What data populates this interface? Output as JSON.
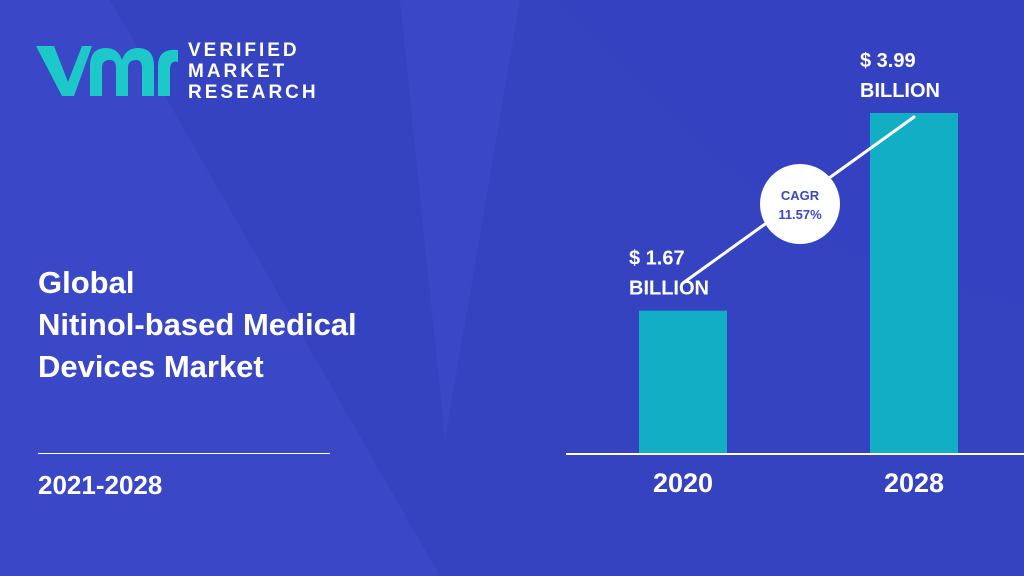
{
  "colors": {
    "background": "#3a47c6",
    "background_shape": "#3341bd",
    "bar": "#12aec4",
    "text": "#ffffff",
    "logo_mark": "#1cc8c8",
    "cagr_text": "#3a47c6"
  },
  "logo": {
    "line1": "VERIFIED",
    "line2": "MARKET",
    "line3": "RESEARCH"
  },
  "title": {
    "line1": "Global",
    "line2": "Nitinol-based Medical",
    "line3": "Devices Market"
  },
  "period": "2021-2028",
  "chart_data": {
    "type": "bar",
    "categories": [
      "2020",
      "2028"
    ],
    "values": [
      1.67,
      3.99
    ],
    "data_labels": [
      [
        "$ 1.67",
        "BILLION"
      ],
      [
        "$ 3.99",
        "BILLION"
      ]
    ],
    "cagr": {
      "label": "CAGR",
      "value": "11.57%"
    },
    "grid": false,
    "legend": "none"
  }
}
